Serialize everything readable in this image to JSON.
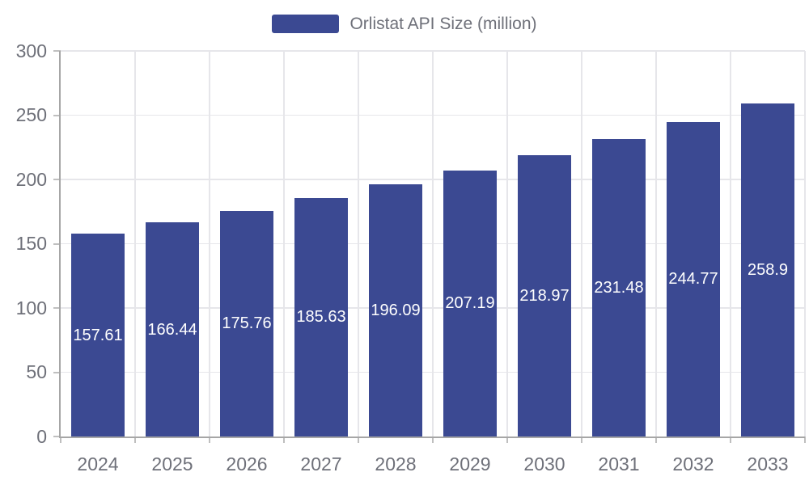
{
  "legend": {
    "label": "Orlistat API Size (million)"
  },
  "chart_data": {
    "type": "bar",
    "title": "Orlistat API Size (million)",
    "series_name": "Orlistat API Size (million)",
    "categories": [
      "2024",
      "2025",
      "2026",
      "2027",
      "2028",
      "2029",
      "2030",
      "2031",
      "2032",
      "2033"
    ],
    "values": [
      157.61,
      166.44,
      175.76,
      185.63,
      196.09,
      207.19,
      218.97,
      231.48,
      244.77,
      258.9
    ],
    "xlabel": "",
    "ylabel": "",
    "ylim": [
      0,
      300
    ],
    "yticks": [
      0,
      50,
      100,
      150,
      200,
      250,
      300
    ],
    "grid": true,
    "legend_position": "top-center",
    "bar_color": "#3B4992",
    "bar_label_color": "#FFFFFF",
    "axis_text_color": "#6E7079",
    "axis_line_color": "#A6A6A6",
    "grid_line_color": "#E6E6EA"
  }
}
